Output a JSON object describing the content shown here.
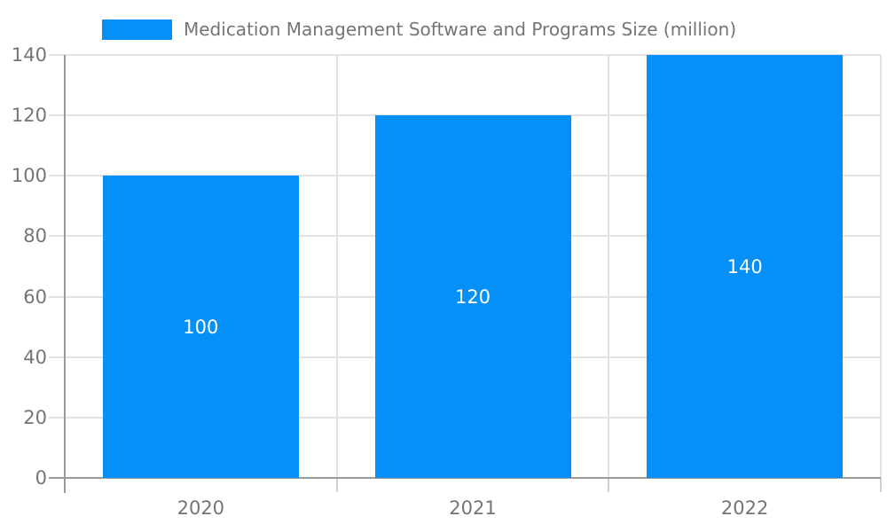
{
  "chart_data": {
    "type": "bar",
    "title": "Medication Management Software and Programs Size (million)",
    "categories": [
      "2020",
      "2021",
      "2022"
    ],
    "values": [
      100,
      120,
      140
    ],
    "series": [
      {
        "name": "Medication Management Software and Programs Size (million)",
        "values": [
          100,
          120,
          140
        ]
      }
    ],
    "xlabel": "",
    "ylabel": "",
    "ylim": [
      0,
      140
    ],
    "yticks": [
      0,
      20,
      40,
      60,
      80,
      100,
      120,
      140
    ],
    "grid": true,
    "legend_position": "top",
    "data_labels_shown": true,
    "colors": {
      "bar": "#0590F8",
      "bar_label_text": "#FFFFFF",
      "axis_line": "#9A9A9A",
      "gridline": "#E3E3E3",
      "boundary_tick": "#CFCFCF",
      "tick_text": "#757575",
      "background": "#FFFFFF"
    }
  }
}
